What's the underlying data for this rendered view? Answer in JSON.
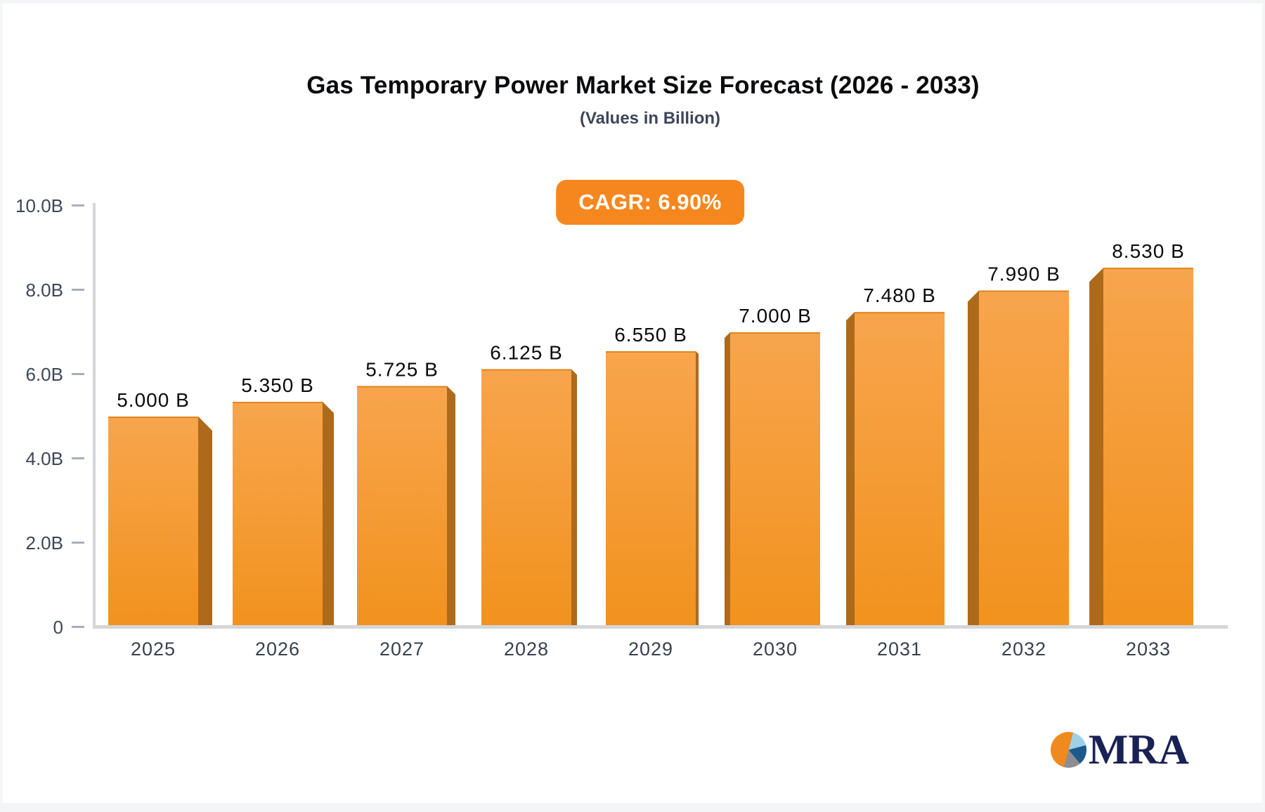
{
  "header": {
    "title": "Gas Temporary Power Market Size Forecast (2026 - 2033)",
    "subtitle": "(Values in Billion)",
    "cagr_badge": "CAGR: 6.90%"
  },
  "chart_data": {
    "type": "bar",
    "title": "Gas Temporary Power Market Size Forecast (2026 - 2033)",
    "subtitle": "(Values in Billion)",
    "cagr_percent": 6.9,
    "unit": "Billion USD",
    "categories": [
      "2025",
      "2026",
      "2027",
      "2028",
      "2029",
      "2030",
      "2031",
      "2032",
      "2033"
    ],
    "values": [
      5.0,
      5.35,
      5.725,
      6.125,
      6.55,
      7.0,
      7.48,
      7.99,
      8.53
    ],
    "value_labels": [
      "5.000 B",
      "5.350 B",
      "5.725 B",
      "6.125 B",
      "6.550 B",
      "7.000 B",
      "7.480 B",
      "7.990 B",
      "8.530 B"
    ],
    "y_ticks": [
      {
        "label": "0",
        "value": 0
      },
      {
        "label": "2.0B",
        "value": 2
      },
      {
        "label": "4.0B",
        "value": 4
      },
      {
        "label": "6.0B",
        "value": 6
      },
      {
        "label": "8.0B",
        "value": 8
      },
      {
        "label": "10.0B",
        "value": 10
      }
    ],
    "ylim": [
      0,
      10
    ],
    "grid": false,
    "legend": false,
    "bar_style": "3d-perspective"
  },
  "colors": {
    "accent_orange": "#f6871e",
    "bar_top": "#f7a54d",
    "bar_bottom": "#f2921e",
    "bar_top_edge": "#e0861f",
    "bar_side": "#ae6a1b",
    "axis_line": "#d5d6da",
    "tick_dash": "#a9afb9",
    "axis_text": "#3e4656",
    "category_text": "#39414f",
    "value_text": "#0b0b0c",
    "subtitle_text": "#3d4659",
    "logo_navy": "#1a2154",
    "logo_orange": "#ef8a20",
    "logo_lightblue": "#9fd0ea",
    "logo_blue": "#1d5a8c",
    "logo_gray": "#8d8d92"
  },
  "logo": {
    "text": "MRA",
    "icon": "pie-chart-icon"
  }
}
